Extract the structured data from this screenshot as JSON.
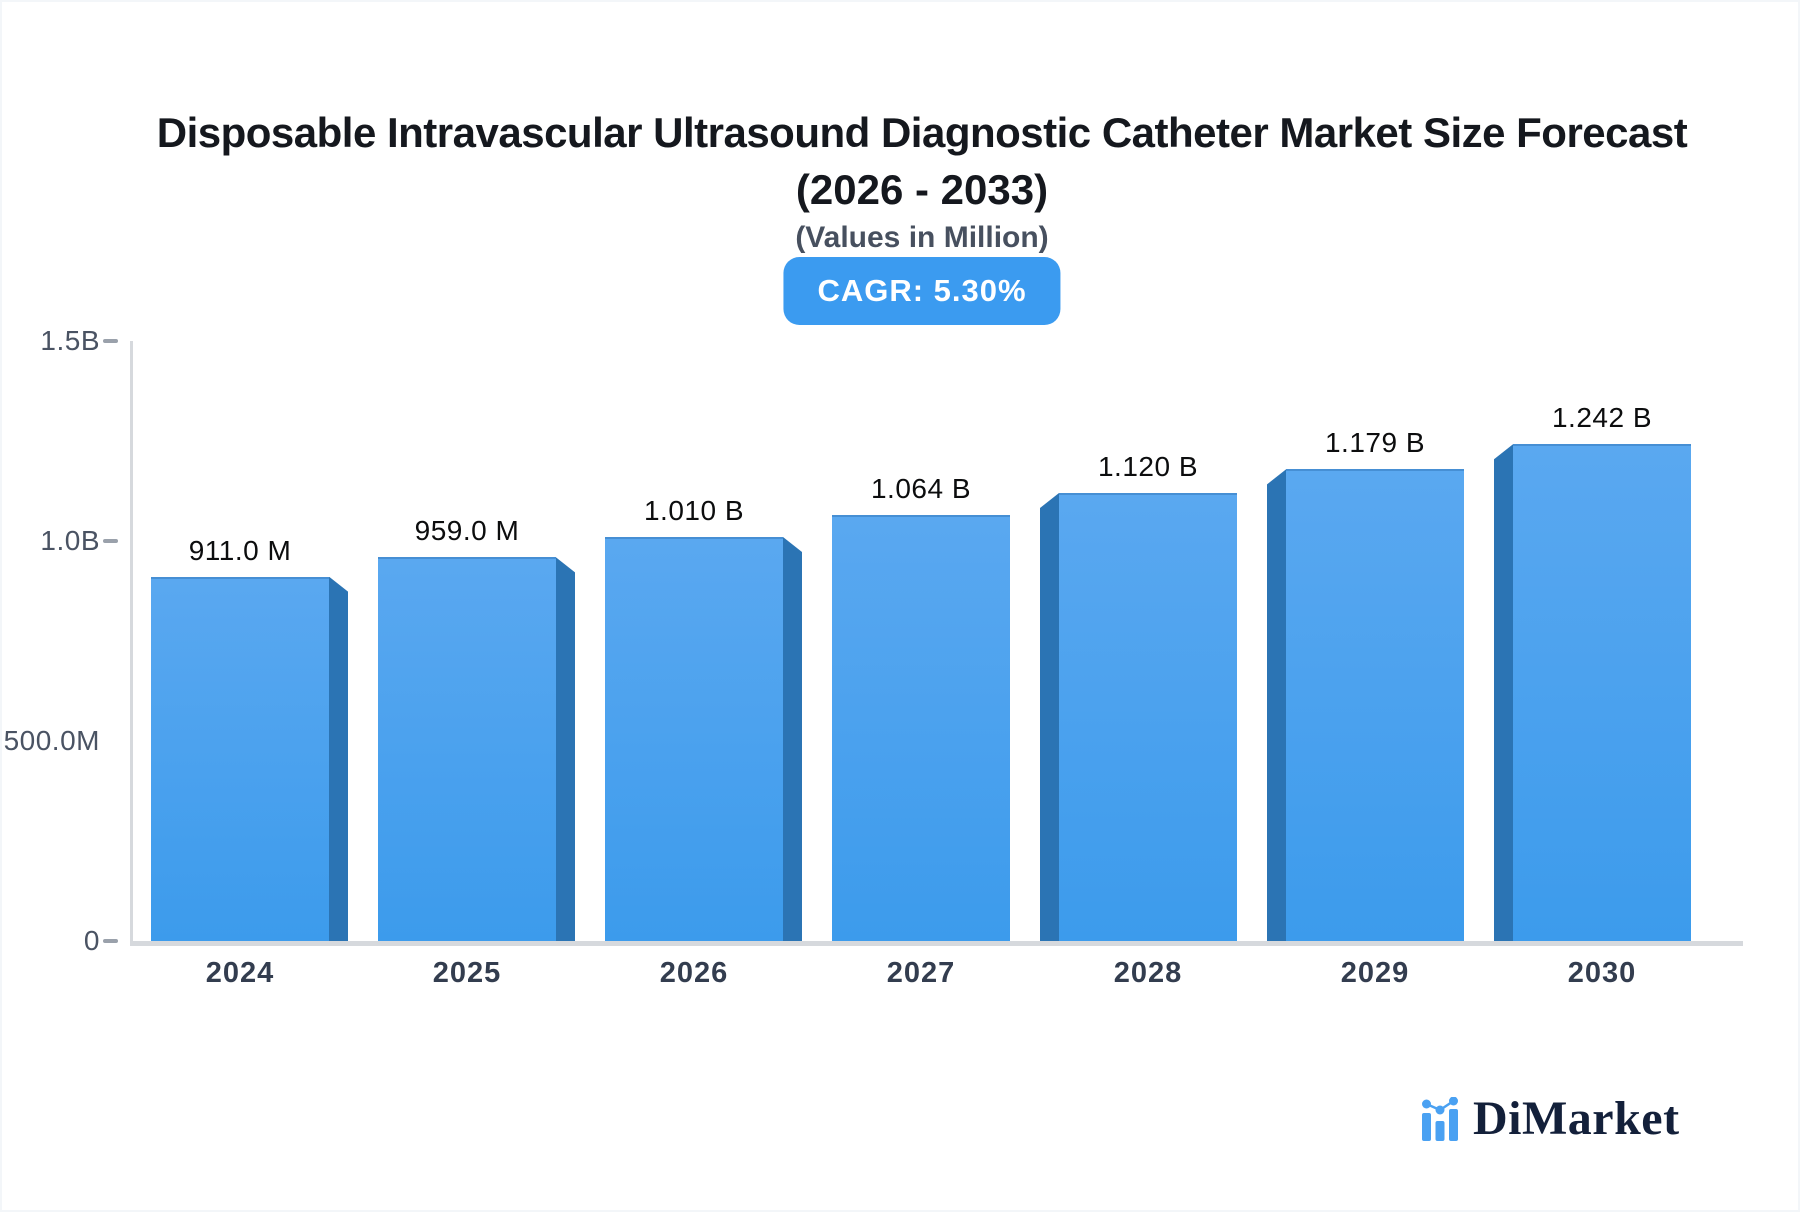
{
  "header": {
    "title_line1": "Disposable Intravascular Ultrasound Diagnostic Catheter Market Size Forecast",
    "title_line2": "(2026 - 2033)",
    "subtitle": "(Values in Million)",
    "cagr_badge": "CAGR: 5.30%"
  },
  "chart_data": {
    "type": "bar",
    "title": "Disposable Intravascular Ultrasound Diagnostic Catheter Market Size Forecast (2026 - 2033)",
    "unit": "Values in Million",
    "cagr": "5.30%",
    "categories": [
      "2024",
      "2025",
      "2026",
      "2027",
      "2028",
      "2029",
      "2030"
    ],
    "values_millions": [
      911,
      959,
      1010,
      1064,
      1120,
      1179,
      1242
    ],
    "value_labels": [
      "911.0 M",
      "959.0 M",
      "1.010 B",
      "1.064 B",
      "1.120 B",
      "1.179 B",
      "1.242 B"
    ],
    "y_axis": {
      "range_millions": [
        0,
        1500
      ],
      "ticks": [
        {
          "label": "0",
          "value_millions": 0,
          "dash": true
        },
        {
          "label": "500.0M",
          "value_millions": 500,
          "dash": false
        },
        {
          "label": "1.0B",
          "value_millions": 1000,
          "dash": true
        },
        {
          "label": "1.5B",
          "value_millions": 1500,
          "dash": true
        }
      ]
    },
    "grid": "off",
    "legend": "none",
    "bar_style": "3d-extruded"
  },
  "footer": {
    "brand": "DiMarket",
    "brand_icon": "bar-line-chart-icon"
  },
  "colors": {
    "badge_bg": "#3b9bf0",
    "badge_text": "#ffffff",
    "bar_face_top": "#5aa8f0",
    "bar_face_bottom": "#3c9bec",
    "bar_side": "#2b74b4",
    "axis_line": "#d6d9dd",
    "tick_dash": "#9aa1ab",
    "title_text": "#15181e",
    "subtitle_text": "#47505f",
    "axis_label": "#4a5363",
    "category_label": "#333d4f",
    "value_label": "#0c0d0e",
    "brand_navy": "#13203a",
    "logo_blue": "#4aa1f2"
  }
}
